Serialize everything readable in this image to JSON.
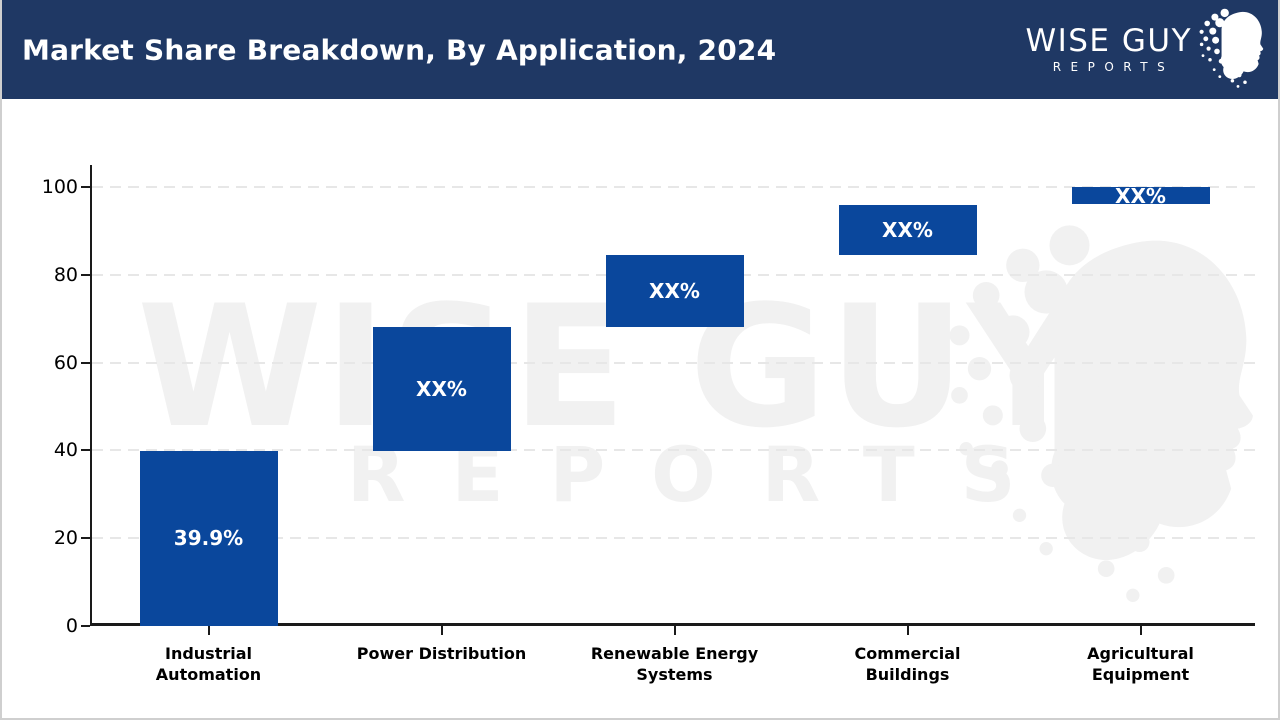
{
  "header": {
    "title": "Market Share Breakdown, By Application, 2024",
    "logo": {
      "wordmark": "WISE GUY",
      "subtext": "REPORTS"
    }
  },
  "watermark": {
    "wordmark": "WISE GUY",
    "subtext": "REPORTS"
  },
  "colors": {
    "header_bg": "#1f3864",
    "bar": "#0a479c",
    "grid": "#e7e7e7",
    "axis": "#1a1a1a",
    "value_label": "#ffffff",
    "watermark": "#f1f1f1"
  },
  "chart_data": {
    "type": "bar",
    "subtype": "waterfall",
    "title": "Market Share Breakdown, By Application, 2024",
    "categories": [
      "Industrial\nAutomation",
      "Power Distribution",
      "Renewable Energy\nSystems",
      "Commercial\nBuildings",
      "Agricultural\nEquipment"
    ],
    "series": [
      {
        "name": "Market Share",
        "segments": [
          {
            "start": 0,
            "end": 39.9,
            "label": "39.9%"
          },
          {
            "start": 39.9,
            "end": 68.0,
            "label": "XX%"
          },
          {
            "start": 68.0,
            "end": 84.4,
            "label": "XX%"
          },
          {
            "start": 84.4,
            "end": 96.0,
            "label": "XX%"
          },
          {
            "start": 96.0,
            "end": 100.0,
            "label": "XX%"
          }
        ]
      }
    ],
    "xlabel": "",
    "ylabel": "",
    "ylim": [
      0,
      105
    ],
    "yticks": [
      0,
      20,
      40,
      60,
      80,
      100
    ],
    "grid": true,
    "legend": false
  }
}
